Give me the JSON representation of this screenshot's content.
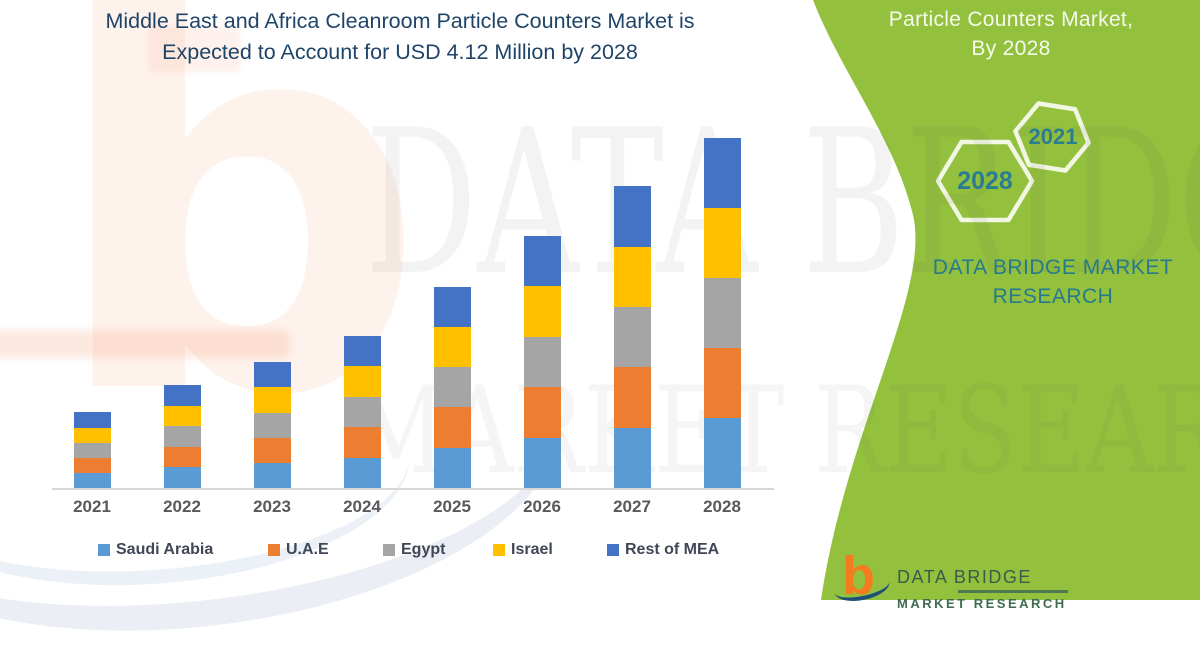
{
  "title": {
    "line1": "Middle East and Africa Cleanroom Particle Counters Market is",
    "line2": "Expected to Account for USD 4.12 Million by 2028"
  },
  "chart_data": {
    "type": "bar",
    "stacked": true,
    "title": "Middle East and Africa Cleanroom Particle Counters Market is Expected to Account for USD 4.12 Million by 2028",
    "unit": "USD Million",
    "categories": [
      "2021",
      "2022",
      "2023",
      "2024",
      "2025",
      "2026",
      "2027",
      "2028"
    ],
    "series": [
      {
        "name": "Saudi Arabia",
        "color": "#5B9BD5",
        "values": [
          0.178,
          0.242,
          0.296,
          0.358,
          0.474,
          0.594,
          0.71,
          0.824
        ]
      },
      {
        "name": "U.A.E",
        "color": "#ED7D31",
        "values": [
          0.178,
          0.242,
          0.296,
          0.358,
          0.474,
          0.594,
          0.71,
          0.824
        ]
      },
      {
        "name": "Egypt",
        "color": "#A5A5A5",
        "values": [
          0.178,
          0.242,
          0.296,
          0.358,
          0.474,
          0.594,
          0.71,
          0.824
        ]
      },
      {
        "name": "Israel",
        "color": "#FFC000",
        "values": [
          0.178,
          0.242,
          0.296,
          0.358,
          0.474,
          0.594,
          0.71,
          0.824
        ]
      },
      {
        "name": "Rest of MEA",
        "color": "#4472C4",
        "values": [
          0.178,
          0.242,
          0.296,
          0.358,
          0.474,
          0.594,
          0.71,
          0.824
        ]
      }
    ],
    "totals_usd_million": [
      0.89,
      1.21,
      1.48,
      1.79,
      2.37,
      2.97,
      3.55,
      4.12
    ],
    "xlabel": "",
    "ylabel": "",
    "ylim": [
      0,
      4.5
    ],
    "grid": false,
    "legend_position": "bottom"
  },
  "side_panel": {
    "header_line1": "Particle Counters Market,",
    "header_line2": "By 2028",
    "hexagon_front_label": "2028",
    "hexagon_back_label": "2021",
    "brand_line1": "DATA BRIDGE MARKET",
    "brand_line2": "RESEARCH"
  },
  "footer_logo": {
    "glyph": "b",
    "name": "DATA BRIDGE",
    "sub": "MARKET RESEARCH"
  },
  "watermark": {
    "glyph": "b",
    "line1": "DATA BRIDGE",
    "line2": "MARKET RESEARCH"
  },
  "colors": {
    "panel_green": "#93C13E",
    "teal": "#26798E",
    "title_blue": "#1F4468",
    "axis_label_gray": "#595959",
    "legend_text": "#404756",
    "axis_line": "#D8D8D8"
  }
}
